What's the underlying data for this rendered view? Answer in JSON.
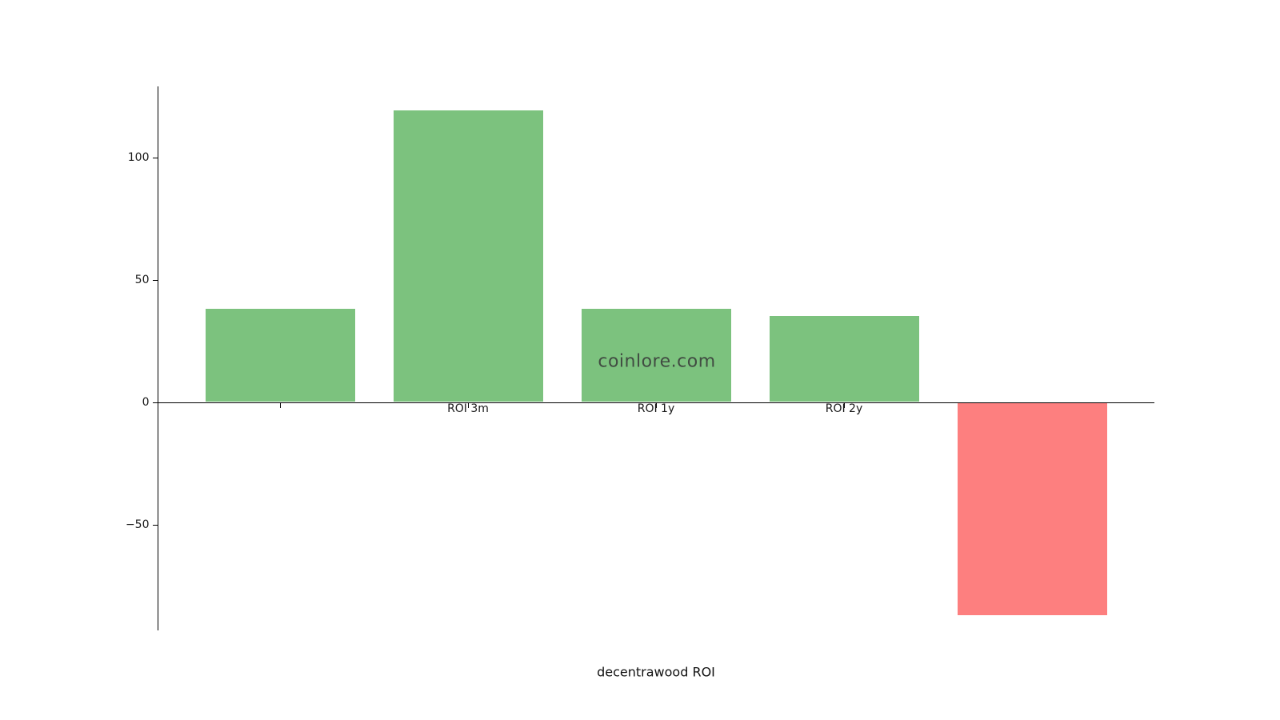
{
  "chart_data": {
    "type": "bar",
    "title": "",
    "xlabel": "decentrawood ROI",
    "ylabel": "",
    "watermark": "coinlore.com",
    "categories": [
      "",
      "ROI 3m",
      "ROI 1y",
      "ROI 2y",
      ""
    ],
    "values": [
      38,
      119,
      38,
      35,
      -87
    ],
    "bar_color_roles": [
      "positive",
      "positive",
      "positive",
      "positive",
      "negative"
    ],
    "yticks": [
      100,
      50,
      0,
      -50
    ],
    "ylim": [
      -93,
      129
    ],
    "grid": false,
    "legend": false,
    "colors": {
      "positive": "#7cc27e",
      "negative": "#fd7f7f",
      "axis": "#000000",
      "tick_text": "#1a1a1a",
      "xlabel_text": "#111111",
      "watermark": "#414c42"
    }
  }
}
